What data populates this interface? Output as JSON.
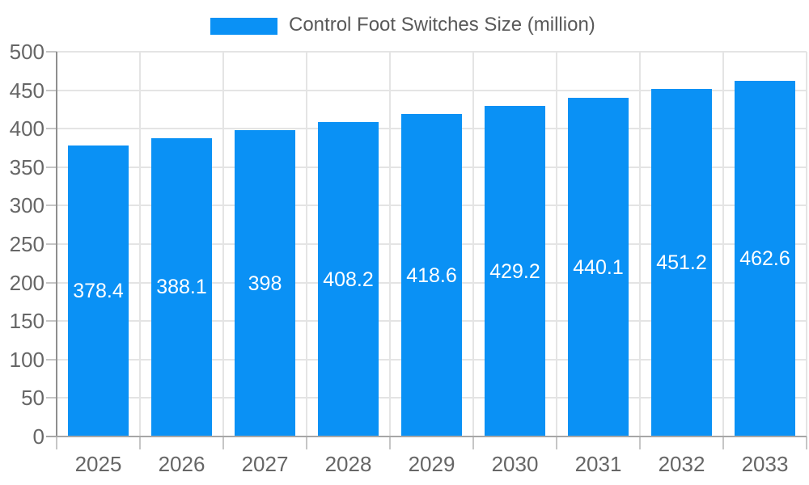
{
  "chart_data": {
    "type": "bar",
    "title": "Control Foot Switches Size (million)",
    "legend": [
      "Control Foot Switches Size (million)"
    ],
    "legend_position": "top-center",
    "categories": [
      "2025",
      "2026",
      "2027",
      "2028",
      "2029",
      "2030",
      "2031",
      "2032",
      "2033"
    ],
    "values": [
      378.4,
      388.1,
      398,
      408.2,
      418.6,
      429.2,
      440.1,
      451.2,
      462.6
    ],
    "value_labels": [
      "378.4",
      "388.1",
      "398",
      "408.2",
      "418.6",
      "429.2",
      "440.1",
      "451.2",
      "462.6"
    ],
    "bar_label_position": "inside-center",
    "xlabel": "",
    "ylabel": "",
    "ylim": [
      0,
      500
    ],
    "yticks": [
      0,
      50,
      100,
      150,
      200,
      250,
      300,
      350,
      400,
      450,
      500
    ],
    "grid": "horizontal-and-vertical",
    "colors": {
      "bar": "#0a91f5",
      "bar_label": "#ffffff",
      "axis_text": "#666666",
      "legend_text": "#595959",
      "grid_line": "#e4e4e4",
      "axis_line": "#8f8f8f"
    }
  }
}
